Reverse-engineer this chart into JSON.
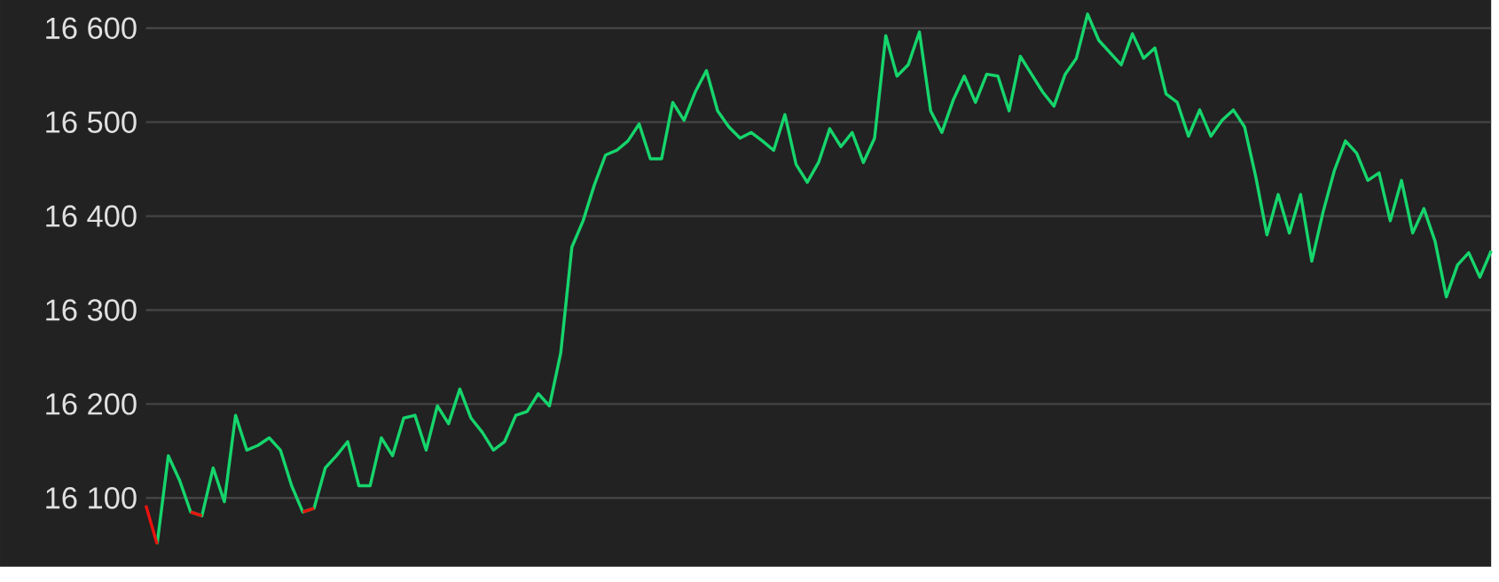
{
  "chart_data": {
    "type": "line",
    "categories": [
      null,
      null,
      null,
      null,
      null,
      null,
      null,
      null,
      null,
      null,
      null,
      null,
      null,
      null,
      null,
      null,
      null,
      null,
      null,
      null,
      null,
      null,
      null,
      null,
      null,
      null,
      null,
      null,
      null,
      null,
      null,
      null,
      null,
      null,
      null,
      null,
      null,
      null,
      null,
      null,
      null,
      null,
      null,
      null,
      null,
      null,
      null,
      null,
      null,
      null,
      null,
      null,
      null,
      null,
      null,
      null,
      null,
      null,
      null,
      null,
      null,
      null,
      null,
      null,
      null,
      null,
      null,
      null,
      null,
      null,
      null,
      null,
      null,
      null,
      null,
      null,
      null,
      null,
      null,
      null,
      null,
      null,
      null,
      null,
      null,
      null,
      null,
      null,
      null,
      null,
      null,
      null,
      null,
      null,
      null,
      null,
      null,
      null,
      null,
      null,
      null,
      null,
      null,
      null,
      null,
      null,
      null,
      null,
      null,
      null,
      null,
      null,
      null,
      null,
      null,
      null,
      null,
      null,
      null,
      null,
      null
    ],
    "series": [
      {
        "color": "#16d56c",
        "values": [
          null,
          16051,
          16145,
          16119,
          16085,
          16081,
          16132,
          16096,
          16188,
          16151,
          16156,
          16164,
          16151,
          16113,
          16085,
          16089,
          16132,
          16145,
          16160,
          16113,
          16113,
          16164,
          16145,
          16185,
          16188,
          16151,
          16198,
          16179,
          16216,
          16185,
          16170,
          16151,
          16160,
          16188,
          16192,
          16211,
          16198,
          16254,
          16367,
          16395,
          16433,
          16465,
          16470,
          16480,
          16498,
          16461,
          16461,
          16521,
          16502,
          16532,
          16555,
          16512,
          16495,
          16483,
          16489,
          16480,
          16470,
          16508,
          16455,
          16436,
          16457,
          16493,
          16474,
          16489,
          16457,
          16483,
          16592,
          16549,
          16561,
          16596,
          16512,
          16489,
          16523,
          16549,
          16521,
          16551,
          16549,
          16512,
          16570,
          16551,
          16532,
          16517,
          16551,
          16568,
          16615,
          16587,
          16574,
          16561,
          16594,
          16568,
          16579,
          16530,
          16521,
          16485,
          16513,
          16485,
          16502,
          16513,
          16495,
          16442,
          16380,
          16423,
          16382,
          16423,
          16352,
          16404,
          16448,
          16480,
          16467,
          16438,
          16446,
          16395,
          16438,
          16382,
          16408,
          16373,
          16314,
          16348,
          16361,
          16335,
          16363
        ]
      },
      {
        "color": "#e8130f",
        "values": [
          16092,
          16051,
          null,
          null,
          16085,
          16081,
          null,
          null,
          null,
          null,
          null,
          null,
          null,
          null,
          16085,
          16089,
          null,
          null,
          null,
          null,
          null,
          null,
          null,
          null,
          null,
          null,
          null,
          null,
          null,
          null,
          null,
          null,
          null,
          null,
          null,
          null,
          null,
          null,
          null,
          null,
          null,
          null,
          null,
          null,
          null,
          null,
          null,
          null,
          null,
          null,
          null,
          null,
          null,
          null,
          null,
          null,
          null,
          null,
          null,
          null,
          null,
          null,
          null,
          null,
          null,
          null,
          null,
          null,
          null,
          null,
          null,
          null,
          null,
          null,
          null,
          null,
          null,
          null,
          null,
          null,
          null,
          null,
          null,
          null,
          null,
          null,
          null,
          null,
          null,
          null,
          null,
          null,
          null,
          null,
          null,
          null,
          null,
          null,
          null,
          null,
          null,
          null,
          null,
          null,
          null,
          null,
          null,
          null,
          null,
          null,
          null,
          null,
          null,
          null,
          null,
          null,
          null,
          null,
          null,
          null,
          null
        ]
      }
    ],
    "ylim": [
      16027,
      16630
    ],
    "yticks": [
      {
        "value": 16100,
        "label": "16 100"
      },
      {
        "value": 16200,
        "label": "16 200"
      },
      {
        "value": 16300,
        "label": "16 300"
      },
      {
        "value": 16400,
        "label": "16 400"
      },
      {
        "value": 16500,
        "label": "16 500"
      },
      {
        "value": 16600,
        "label": "16 600"
      }
    ],
    "grid": "y",
    "line_style": "solid"
  }
}
